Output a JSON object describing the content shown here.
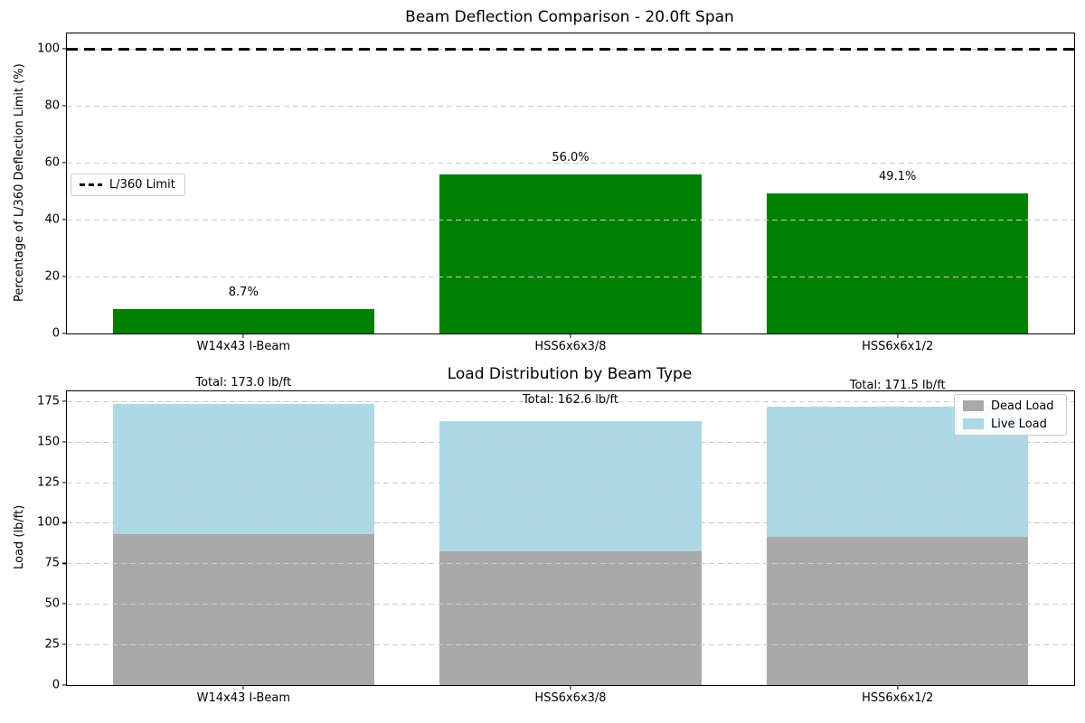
{
  "figure": {
    "background": "#ffffff",
    "text_color": "#000000",
    "grid_color": "#c9c9c9"
  },
  "chart_data": [
    {
      "type": "bar",
      "title": "Beam Deflection Comparison - 20.0ft Span",
      "ylabel": "Percentage of L/360 Deflection Limit (%)",
      "xlabel": "",
      "categories": [
        "W14x43 I-Beam",
        "HSS6x6x3/8",
        "HSS6x6x1/2"
      ],
      "values": [
        8.7,
        56.0,
        49.1
      ],
      "value_labels": [
        "8.7%",
        "56.0%",
        "49.1%"
      ],
      "bar_color": "#008000",
      "yticks": [
        0,
        20,
        40,
        60,
        80,
        100
      ],
      "ylim": [
        0,
        105.5
      ],
      "grid": "y-dashed",
      "reference_line": {
        "value": 100,
        "label": "L/360 Limit",
        "color": "#000000",
        "style": "dashed"
      },
      "legend": {
        "position": "center-left",
        "entries": [
          "L/360 Limit"
        ]
      }
    },
    {
      "type": "bar",
      "stacked": true,
      "title": "Load Distribution by Beam Type",
      "ylabel": "Load (lb/ft)",
      "xlabel": "",
      "categories": [
        "W14x43 I-Beam",
        "HSS6x6x3/8",
        "HSS6x6x1/2"
      ],
      "series": [
        {
          "name": "Dead Load",
          "color": "#a9a9a9",
          "values": [
            93.0,
            82.6,
            91.5
          ]
        },
        {
          "name": "Live Load",
          "color": "#add8e6",
          "values": [
            80.0,
            80.0,
            80.0
          ]
        }
      ],
      "totals": [
        173.0,
        162.6,
        171.5
      ],
      "total_labels": [
        "Total: 173.0 lb/ft",
        "Total: 162.6 lb/ft",
        "Total: 171.5 lb/ft"
      ],
      "yticks": [
        0,
        25,
        50,
        75,
        100,
        125,
        150,
        175
      ],
      "ylim": [
        0,
        181.0
      ],
      "grid": "y-dashed",
      "legend": {
        "position": "top-right",
        "entries": [
          "Dead Load",
          "Live Load"
        ]
      }
    }
  ]
}
